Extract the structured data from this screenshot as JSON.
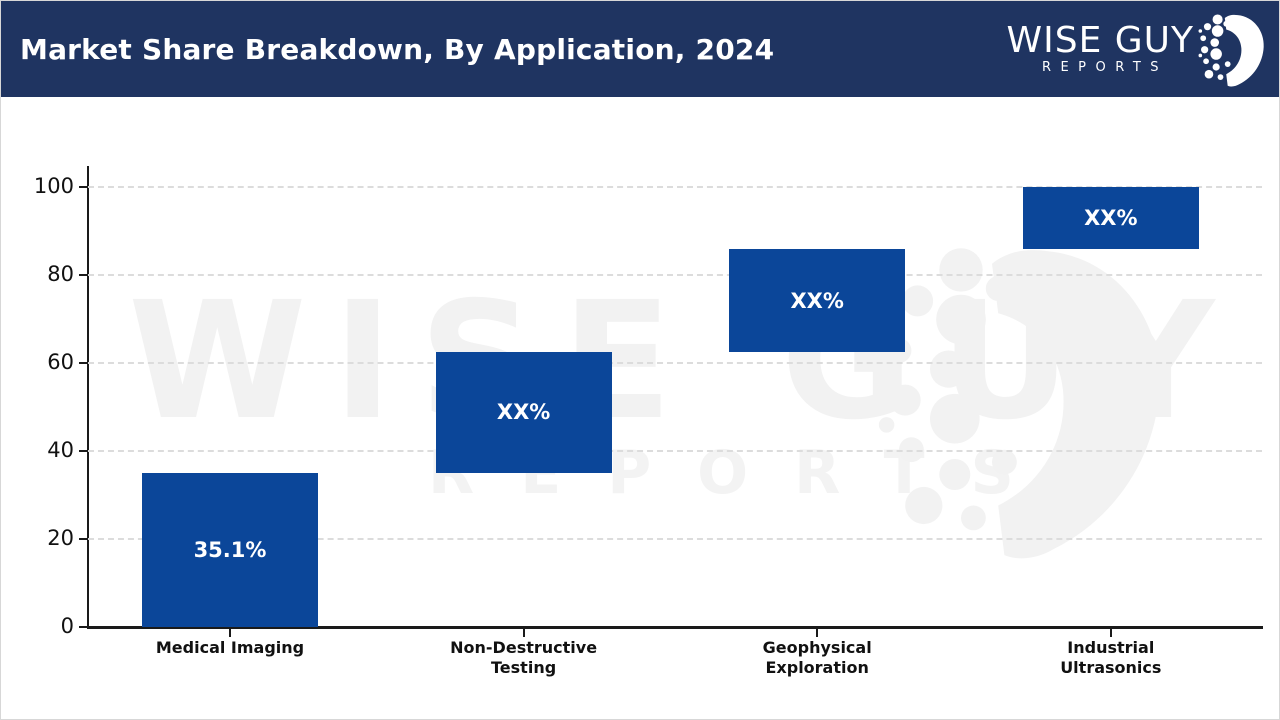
{
  "header": {
    "title": "Market Share Breakdown, By Application, 2024",
    "bg_color": "#1f3461",
    "logo": {
      "line1": "WISE GUY",
      "line2": "REPORTS"
    }
  },
  "watermark": {
    "line1": "WISE GUY",
    "line2": "REPORTS"
  },
  "chart_data": {
    "type": "bar",
    "variant": "waterfall",
    "title": "Market Share Breakdown, By Application, 2024",
    "categories": [
      "Medical Imaging",
      "Non-Destructive Testing",
      "Geophysical Exploration",
      "Industrial Ultrasonics"
    ],
    "categories_lines": [
      [
        "Medical Imaging"
      ],
      [
        "Non-Destructive",
        "Testing"
      ],
      [
        "Geophysical",
        "Exploration"
      ],
      [
        "Industrial",
        "Ultrasonics"
      ]
    ],
    "segments": [
      {
        "category": "Medical Imaging",
        "start": 0,
        "end": 35.1,
        "value": 35.1,
        "label": "35.1%"
      },
      {
        "category": "Non-Destructive Testing",
        "start": 35.1,
        "end": 62.5,
        "value": 27.4,
        "label": "XX%"
      },
      {
        "category": "Geophysical Exploration",
        "start": 62.5,
        "end": 85.9,
        "value": 23.4,
        "label": "XX%"
      },
      {
        "category": "Industrial Ultrasonics",
        "start": 85.9,
        "end": 100,
        "value": 14.1,
        "label": "XX%"
      }
    ],
    "yticks": [
      0,
      20,
      40,
      60,
      80,
      100
    ],
    "ytick_labels": [
      "0",
      "20",
      "40",
      "60",
      "80",
      "100"
    ],
    "ylim": [
      0,
      104.5
    ],
    "xlabel": "",
    "ylabel": "",
    "grid": "horizontal dashed",
    "legend": "none",
    "bar_color": "#0b4699",
    "grid_color": "#dcdcdc",
    "axis_color": "#1a1a1a"
  }
}
